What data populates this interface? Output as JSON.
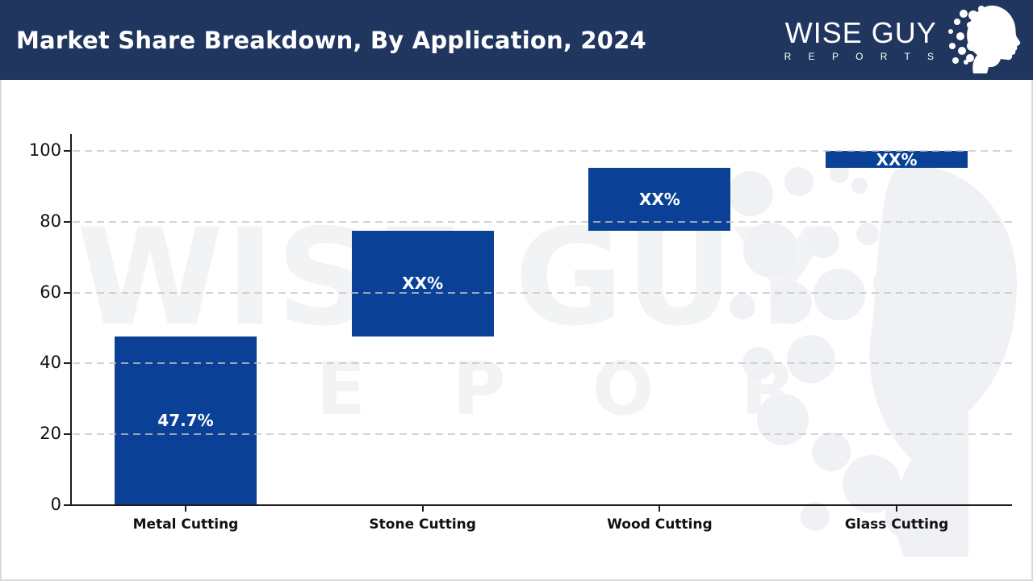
{
  "header": {
    "title": "Market Share Breakdown, By Application, 2024",
    "background_color": "#21365f",
    "logo": {
      "line1": "WISE GUY",
      "line2": "R E P O R T S"
    }
  },
  "watermark": {
    "line1": "WISE GUY",
    "line2": "R E P O R T S"
  },
  "chart_data": {
    "type": "bar",
    "subtype": "waterfall",
    "title": "Market Share Breakdown, By Application, 2024",
    "categories": [
      "Metal Cutting",
      "Stone Cutting",
      "Wood Cutting",
      "Glass Cutting"
    ],
    "segments": [
      {
        "category": "Metal Cutting",
        "start": 0,
        "end": 47.7,
        "value": 47.7,
        "label": "47.7%"
      },
      {
        "category": "Stone Cutting",
        "start": 47.7,
        "end": 77.4,
        "value": 29.7,
        "label": "XX%"
      },
      {
        "category": "Wood Cutting",
        "start": 77.4,
        "end": 95.2,
        "value": 17.8,
        "label": "XX%"
      },
      {
        "category": "Glass Cutting",
        "start": 95.2,
        "end": 100,
        "value": 4.8,
        "label": "XX%"
      }
    ],
    "y_ticks": [
      0,
      20,
      40,
      60,
      80,
      100
    ],
    "ylim": [
      0,
      104.8
    ],
    "xlabel": "",
    "ylabel": "",
    "grid": "horizontal-dashed",
    "legend": false,
    "bar_color": "#0a4196",
    "value_label_color": "#ffffff",
    "axis_color": "#1c1c1c"
  }
}
